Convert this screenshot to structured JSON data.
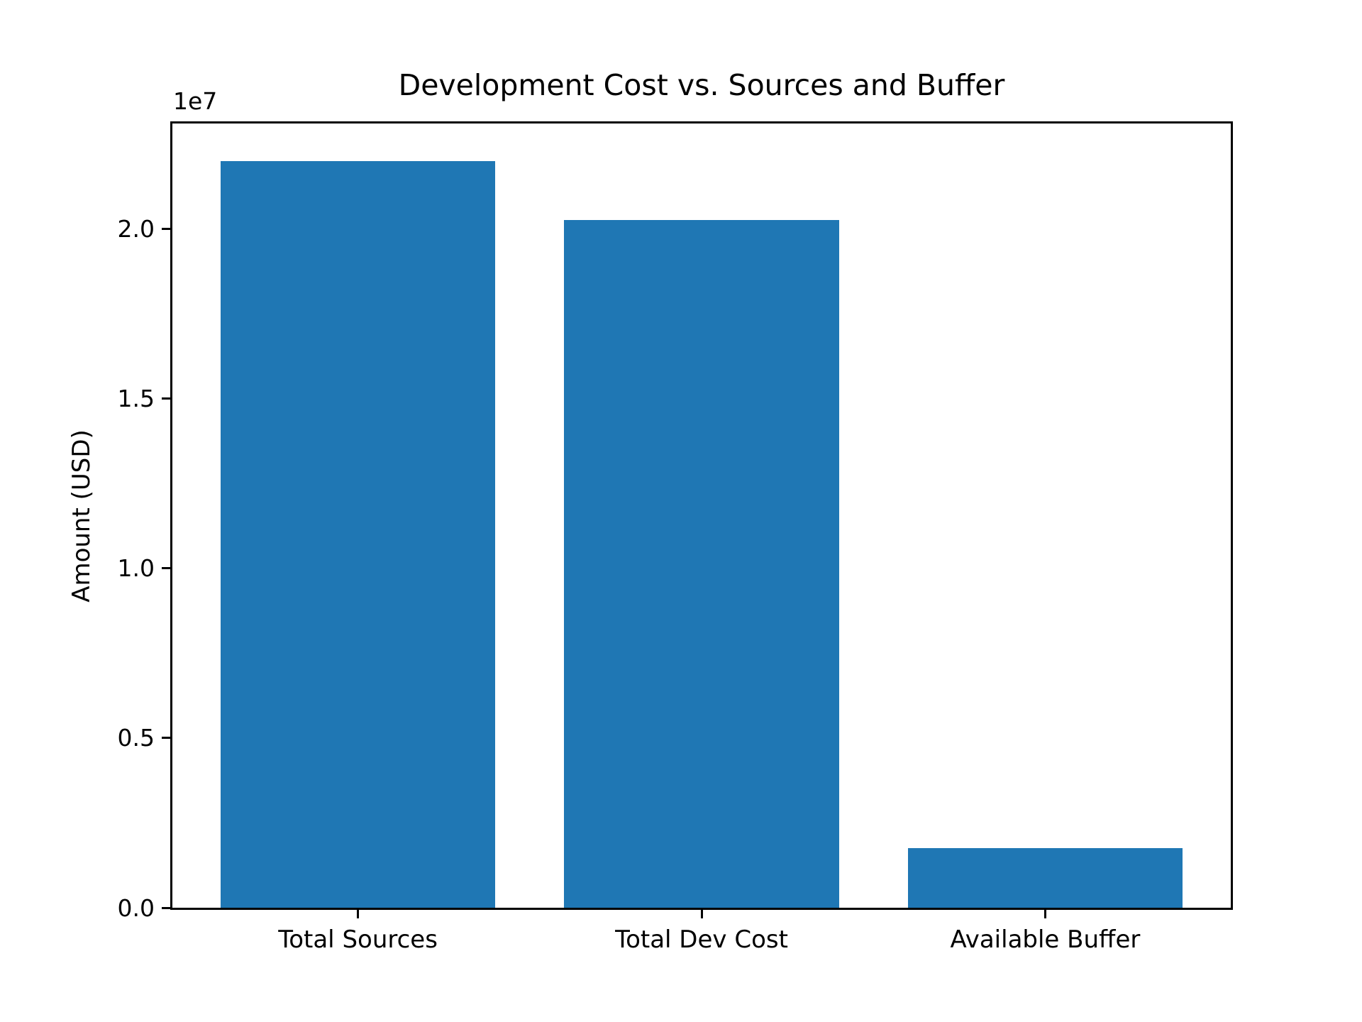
{
  "chart_data": {
    "type": "bar",
    "title": "Development Cost vs. Sources and Buffer",
    "xlabel": "",
    "ylabel": "Amount (USD)",
    "y_offset_label": "1e7",
    "categories": [
      "Total Sources",
      "Total Dev Cost",
      "Available Buffer"
    ],
    "values": [
      22000000,
      20250000,
      1750000
    ],
    "ylim": [
      0,
      23100000
    ],
    "yticks": {
      "values": [
        0,
        5000000,
        10000000,
        15000000,
        20000000
      ],
      "labels": [
        "0.0",
        "0.5",
        "1.0",
        "1.5",
        "2.0"
      ]
    },
    "grid": false,
    "legend": null,
    "colors": {
      "bar": "#1f77b4",
      "axis": "#000000",
      "background": "#ffffff"
    }
  }
}
